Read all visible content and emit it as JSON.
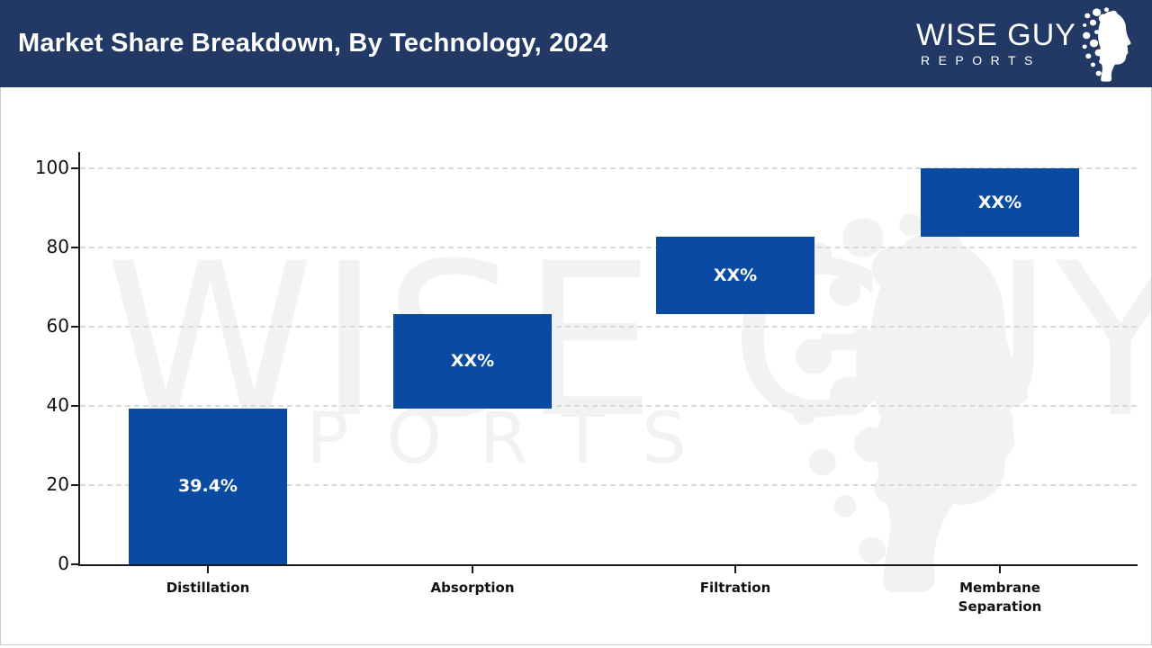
{
  "header": {
    "title": "Market Share Breakdown, By Technology, 2024",
    "logo_line1": "WISE GUY",
    "logo_line2": "REPORTS"
  },
  "watermark": {
    "line1": "WISE GUY",
    "line2": "REPORTS"
  },
  "colors": {
    "header_bg": "#223865",
    "bar": "#0a4aa2",
    "bar_label": "#ffffff",
    "axis": "#1a1a1a",
    "grid": "#d9d9d9",
    "watermark": "#f2f2f2",
    "card_border": "#cccccc",
    "title_text": "#ffffff",
    "tick_text": "#111111"
  },
  "chart_data": {
    "type": "bar",
    "subtype": "waterfall",
    "title": "Market Share Breakdown, By Technology, 2024",
    "xlabel": "",
    "ylabel": "",
    "ylim": [
      0,
      100
    ],
    "yticks": [
      0,
      20,
      40,
      60,
      80,
      100
    ],
    "grid": "horizontal dashed",
    "legend": "none",
    "categories": [
      "Distillation",
      "Absorption",
      "Filtration",
      "Membrane Separation"
    ],
    "bars": [
      {
        "category": "Distillation",
        "start": 0,
        "end": 39.4,
        "value": 39.4,
        "value_label": "39.4%"
      },
      {
        "category": "Absorption",
        "start": 39.4,
        "end": 63.2,
        "value": 23.8,
        "value_label": "XX%"
      },
      {
        "category": "Filtration",
        "start": 63.2,
        "end": 82.8,
        "value": 19.6,
        "value_label": "XX%"
      },
      {
        "category": "Membrane Separation",
        "start": 82.8,
        "end": 100,
        "value": 17.2,
        "value_label": "XX%"
      }
    ]
  }
}
